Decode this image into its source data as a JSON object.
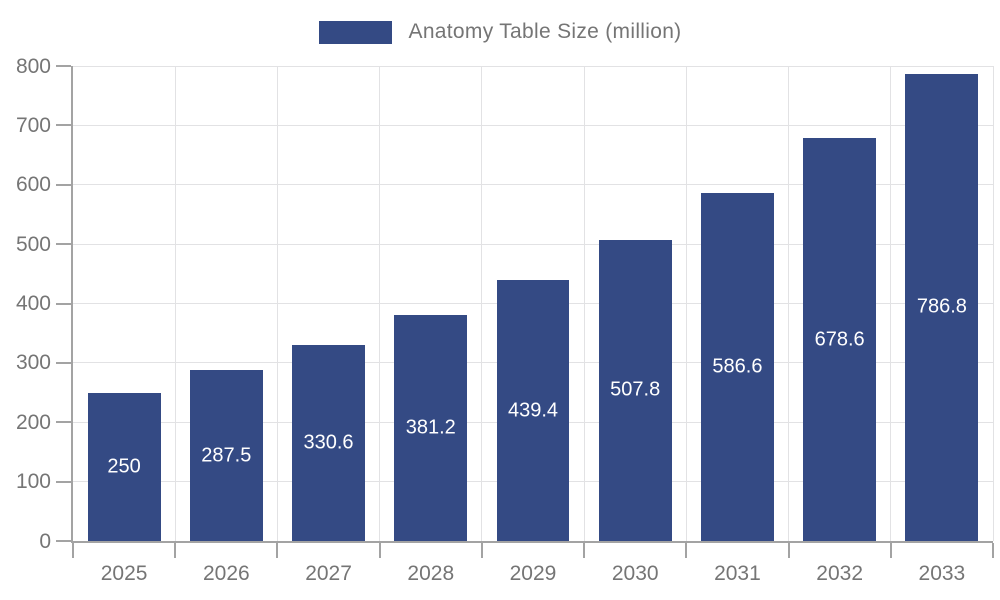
{
  "legend": {
    "label": "Anatomy Table Size (million)"
  },
  "chart_data": {
    "type": "bar",
    "title": "Anatomy Table Size (million)",
    "categories": [
      "2025",
      "2026",
      "2027",
      "2028",
      "2029",
      "2030",
      "2031",
      "2032",
      "2033"
    ],
    "values": [
      250,
      287.5,
      330.6,
      381.2,
      439.4,
      507.8,
      586.6,
      678.6,
      786.8
    ],
    "value_labels": [
      "250",
      "287.5",
      "330.6",
      "381.2",
      "439.4",
      "507.8",
      "586.6",
      "678.6",
      "786.8"
    ],
    "xlabel": "",
    "ylabel": "",
    "ylim": [
      0,
      800
    ],
    "yticks": [
      0,
      100,
      200,
      300,
      400,
      500,
      600,
      700,
      800
    ],
    "grid": "horizontal and vertical light gridlines",
    "legend_position": "top-center",
    "value_label_position": "center-inside-bar",
    "colors": {
      "bar": "#344a84",
      "grid": "#e2e2e4",
      "axis": "#a3a3a3",
      "tick_label": "#757575",
      "value_label": "#ffffff",
      "background": "#ffffff"
    }
  }
}
